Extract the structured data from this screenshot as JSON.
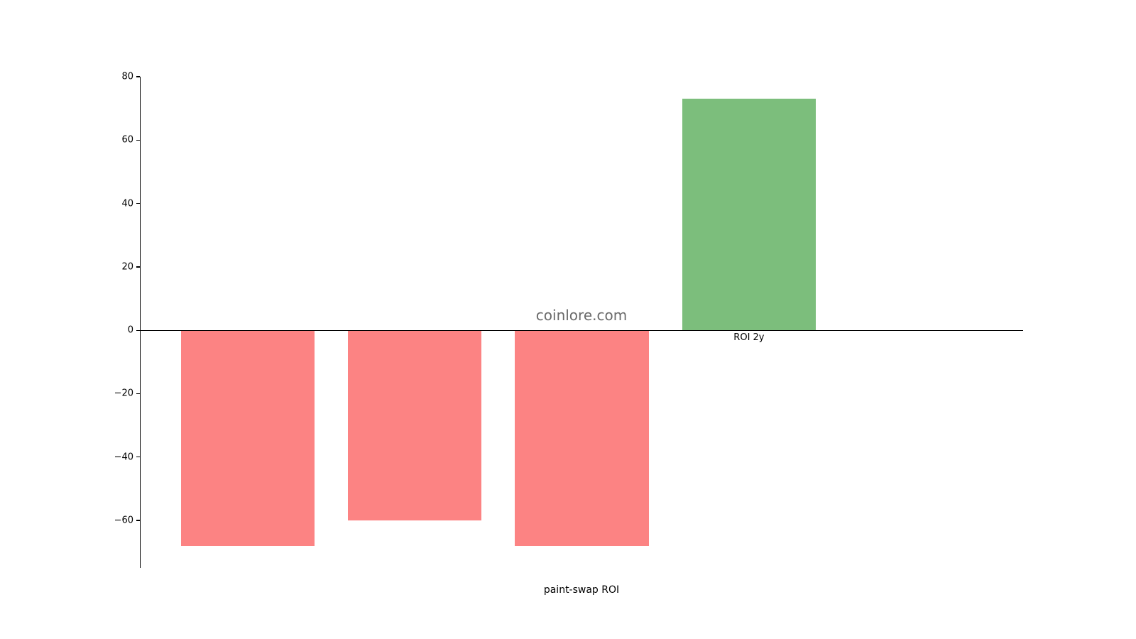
{
  "chart_data": {
    "type": "bar",
    "categories": [
      "",
      "",
      "",
      "ROI 2y"
    ],
    "values": [
      -68,
      -60,
      -68,
      73
    ],
    "xlabel": "paint-swap ROI",
    "ylabel": "",
    "watermark": "coinlore.com",
    "ylim": [
      -75,
      80
    ],
    "yticks": [
      {
        "label": "80",
        "value": 80
      },
      {
        "label": "60",
        "value": 60
      },
      {
        "label": "40",
        "value": 40
      },
      {
        "label": "20",
        "value": 20
      },
      {
        "label": "0",
        "value": 0
      },
      {
        "label": "−20",
        "value": -20
      },
      {
        "label": "−40",
        "value": -40
      },
      {
        "label": "−60",
        "value": -60
      }
    ],
    "xlim_units": [
      -0.64,
      4.64
    ],
    "bar_width_units": 0.8,
    "grid": false,
    "legend": false,
    "colors": {
      "positive_bar": "#7cbe7c",
      "negative_bar": "#fc8383",
      "axis": "#000000",
      "watermark": "#6a6a6a",
      "background": "#ffffff"
    }
  }
}
